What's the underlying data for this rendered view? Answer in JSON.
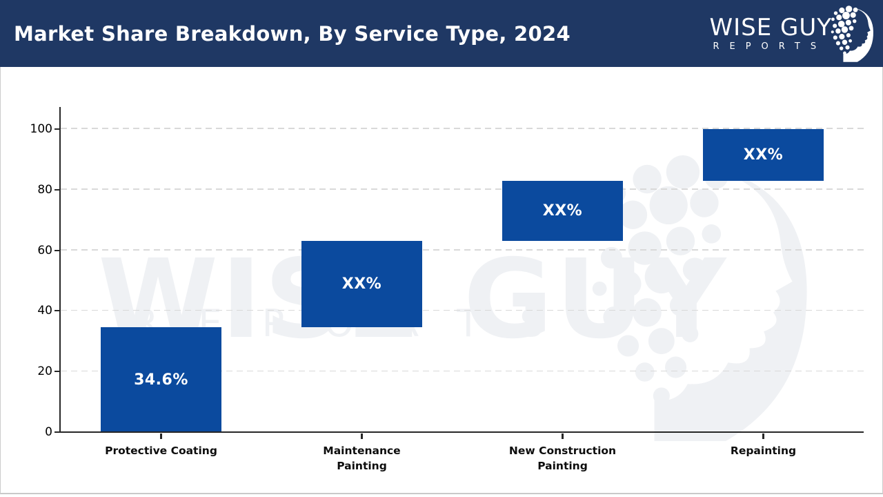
{
  "header": {
    "title": "Market Share Breakdown, By Service Type, 2024",
    "logo_line1": "WISE GUY",
    "logo_line2": "REPORTS"
  },
  "watermark": {
    "line1": "WISE GUY",
    "line2": "REPORTS"
  },
  "chart_data": {
    "type": "bar",
    "variant": "waterfall",
    "title": "Market Share Breakdown, By Service Type, 2024",
    "categories": [
      "Protective Coating",
      "Maintenance\nPainting",
      "New Construction\nPainting",
      "Repainting"
    ],
    "segments": [
      {
        "category": "Protective Coating",
        "start": 0,
        "end": 34.6,
        "label": "34.6%"
      },
      {
        "category": "Maintenance Painting",
        "start": 34.6,
        "end": 63,
        "label": "XX%"
      },
      {
        "category": "New Construction Painting",
        "start": 63,
        "end": 83,
        "label": "XX%"
      },
      {
        "category": "Repainting",
        "start": 83,
        "end": 100,
        "label": "XX%"
      }
    ],
    "y_ticks": [
      0,
      20,
      40,
      60,
      80,
      100
    ],
    "ylim": [
      0,
      107.3
    ],
    "xlabel": "",
    "ylabel": "",
    "grid": "horizontal-dashed",
    "legend": "none",
    "colors": {
      "bar": "#0b4a9e",
      "header_bg": "#1f3864",
      "grid": "#d9d9d9",
      "axis": "#262626",
      "bar_label": "#ffffff",
      "watermark": "#eff1f4"
    }
  }
}
